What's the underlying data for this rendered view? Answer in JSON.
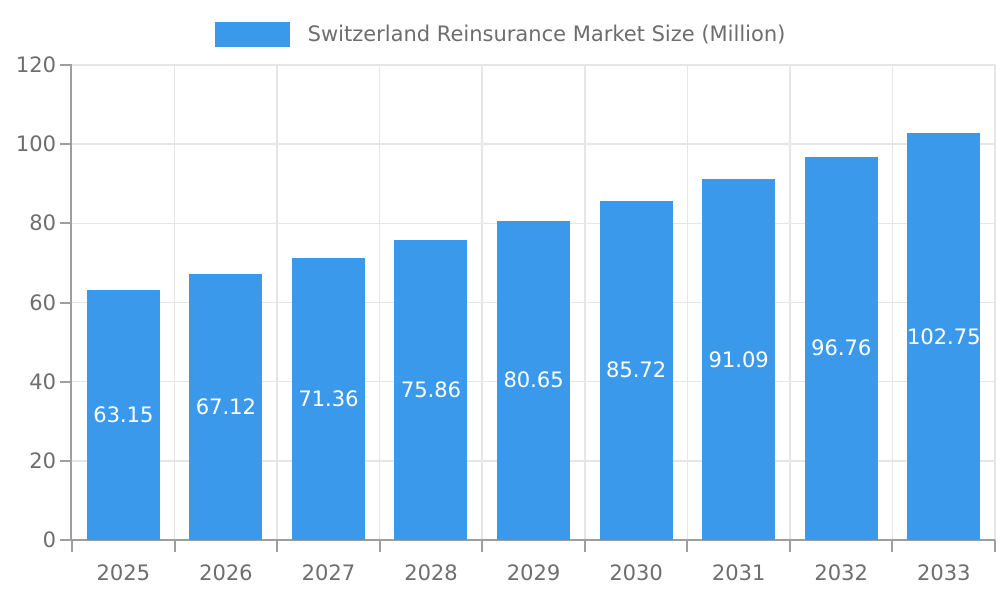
{
  "legend": {
    "label": "Switzerland Reinsurance Market Size (Million)",
    "swatch_color": "#3b99eb"
  },
  "chart_data": {
    "type": "bar",
    "title": "Switzerland Reinsurance Market Size (Million)",
    "categories": [
      "2025",
      "2026",
      "2027",
      "2028",
      "2029",
      "2030",
      "2031",
      "2032",
      "2033"
    ],
    "values": [
      63.15,
      67.12,
      71.36,
      75.86,
      80.65,
      85.72,
      91.09,
      96.76,
      102.75
    ],
    "value_labels": [
      "63.15",
      "67.12",
      "71.36",
      "75.86",
      "80.65",
      "85.72",
      "91.09",
      "96.76",
      "102.75"
    ],
    "series_name": "Switzerland Reinsurance Market Size (Million)",
    "xlabel": "",
    "ylabel": "",
    "ylim": [
      0,
      120
    ],
    "y_ticks": [
      0,
      20,
      40,
      60,
      80,
      100,
      120
    ],
    "grid": true,
    "legend_position": "top",
    "bar_color": "#3b99eb",
    "value_label_color": "#ffffff"
  },
  "colors": {
    "bar": "#3b99eb",
    "axis_line": "#9e9e9e",
    "grid_line": "#e6e6e6",
    "tick_label": "#6e6e6e",
    "value_label": "#ffffff",
    "background": "#ffffff"
  }
}
